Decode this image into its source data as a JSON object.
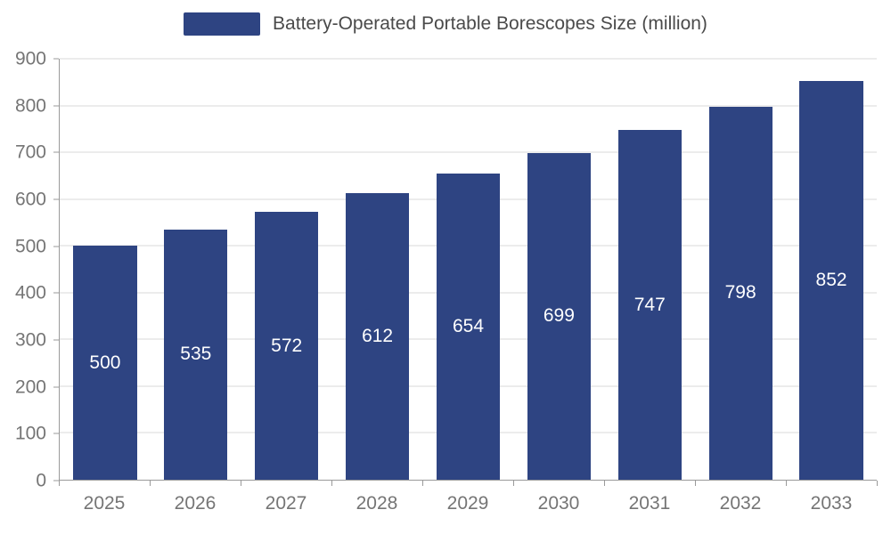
{
  "chart_data": {
    "type": "bar",
    "title": "Battery-Operated Portable Borescopes Size (million)",
    "categories": [
      "2025",
      "2026",
      "2027",
      "2028",
      "2029",
      "2030",
      "2031",
      "2032",
      "2033"
    ],
    "values": [
      500,
      535,
      572,
      612,
      654,
      699,
      747,
      798,
      852
    ],
    "xlabel": "",
    "ylabel": "",
    "ylim": [
      0,
      900
    ],
    "ytick_step": 100,
    "grid": true,
    "legend_position": "top",
    "bar_color": "#2e4482",
    "value_label_color": "#ffffff",
    "axis_text_color": "#757575"
  }
}
